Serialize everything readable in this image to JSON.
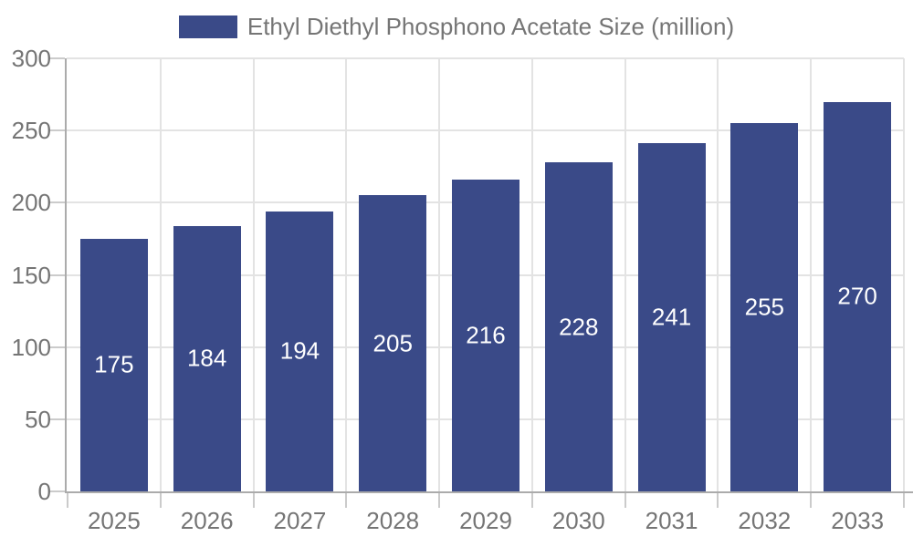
{
  "legend": {
    "series_label": "Ethyl Diethyl Phosphono Acetate Size (million)"
  },
  "colors": {
    "bar": "#3A4A88",
    "bar_label": "#FFFFFF",
    "axis_line": "#ABABAB",
    "gridline": "#E3E3E3",
    "tick_mark": "#CBCBCB",
    "tick_label": "#757575",
    "legend_text": "#757575",
    "background": "#FFFFFF"
  },
  "chart_data": {
    "type": "bar",
    "title": "",
    "categories": [
      "2025",
      "2026",
      "2027",
      "2028",
      "2029",
      "2030",
      "2031",
      "2032",
      "2033"
    ],
    "values": [
      175,
      184,
      194,
      205,
      216,
      228,
      241,
      255,
      270
    ],
    "series": [
      {
        "name": "Ethyl Diethyl Phosphono Acetate Size (million)",
        "values": [
          175,
          184,
          194,
          205,
          216,
          228,
          241,
          255,
          270
        ]
      }
    ],
    "xlabel": "",
    "ylabel": "",
    "ylim": [
      0,
      300
    ],
    "yticks": [
      0,
      50,
      100,
      150,
      200,
      250,
      300
    ],
    "grid": true,
    "legend_position": "top-center",
    "bar_labels": "white-centered-inside-bars"
  }
}
